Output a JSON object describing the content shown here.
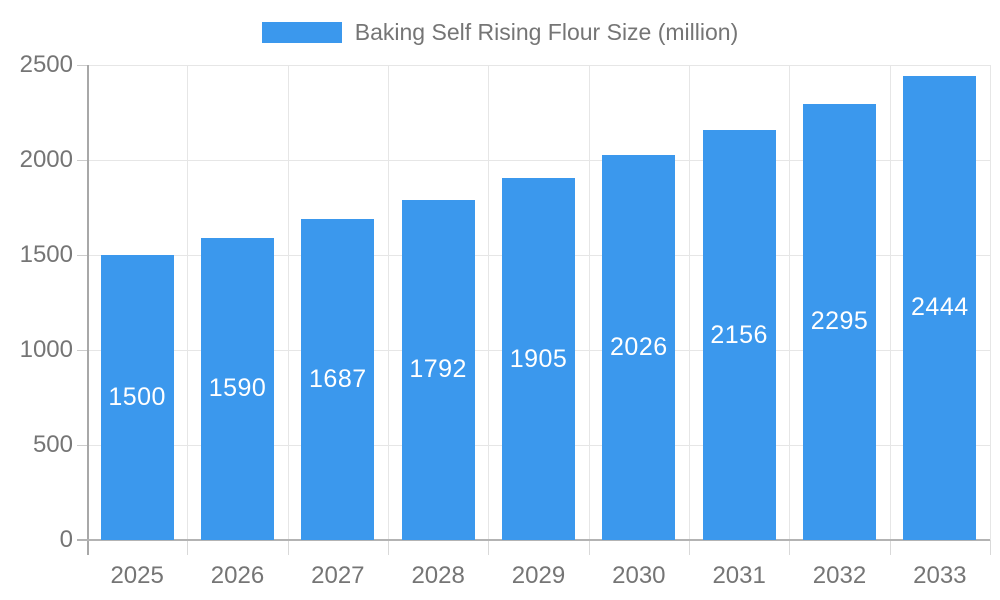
{
  "legend": {
    "label": "Baking Self Rising Flour Size (million)"
  },
  "colors": {
    "bar": "#3b98ed",
    "axis_text": "#757575",
    "gridline": "#e6e6e6",
    "axis_line": "#a8a8a8",
    "bar_label": "#ffffff"
  },
  "chart_data": {
    "type": "bar",
    "title": "Baking Self Rising Flour Size (million)",
    "categories": [
      "2025",
      "2026",
      "2027",
      "2028",
      "2029",
      "2030",
      "2031",
      "2032",
      "2033"
    ],
    "series": [
      {
        "name": "Baking Self Rising Flour Size (million)",
        "values": [
          1500,
          1590,
          1687,
          1792,
          1905,
          2026,
          2156,
          2295,
          2444
        ]
      }
    ],
    "value_labels": [
      "1500",
      "1590",
      "1687",
      "1792",
      "1905",
      "2026",
      "2156",
      "2295",
      "2444"
    ],
    "xlabel": "",
    "ylabel": "",
    "ylim": [
      0,
      2500
    ],
    "yticks": [
      0,
      500,
      1000,
      1500,
      2000,
      2500
    ],
    "ytick_labels": [
      "0",
      "500",
      "1000",
      "1500",
      "2000",
      "2500"
    ],
    "grid": true,
    "legend_position": "top-center",
    "bar_label_position": "inside-center"
  }
}
